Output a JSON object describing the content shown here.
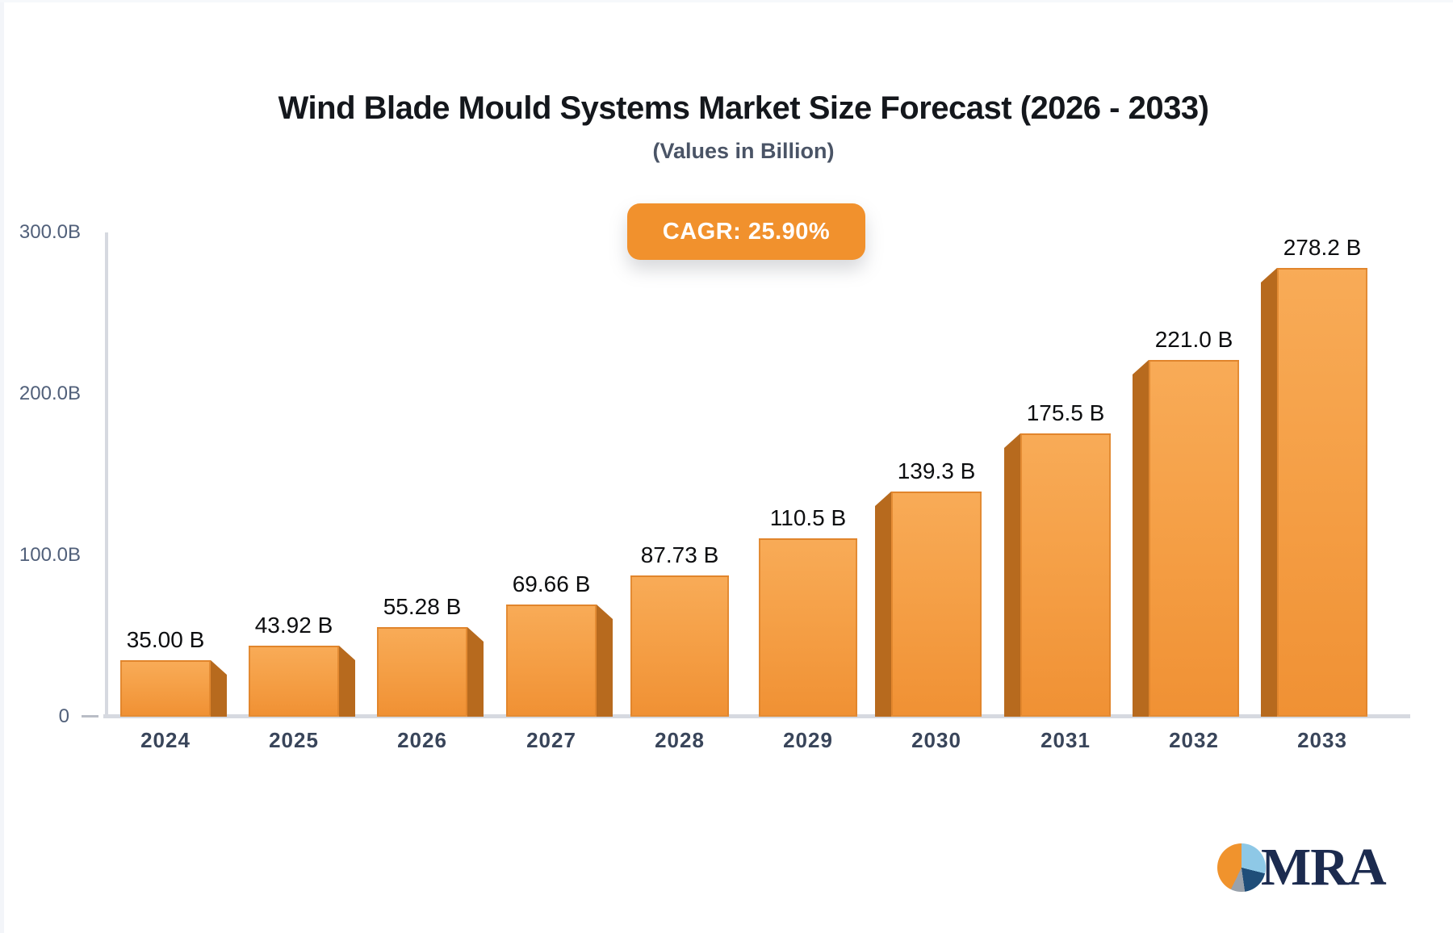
{
  "header": {
    "title": "Wind Blade Mould Systems Market Size Forecast (2026 - 2033)",
    "subtitle": "(Values in Billion)",
    "cagr_label": "CAGR: 25.90%"
  },
  "logo": {
    "text": "MRA"
  },
  "colors": {
    "accent_orange": "#f1912d",
    "bar_front_top": "#f8ab57",
    "bar_front_bottom": "#f09134",
    "bar_side": "#b76a1e",
    "axis_gray": "#d6d9e0",
    "navy": "#1c2b4f"
  },
  "chart_data": {
    "type": "bar",
    "title": "Wind Blade Mould Systems Market Size Forecast (2026 - 2033)",
    "subtitle": "(Values in Billion)",
    "cagr_label": "CAGR: 25.90%",
    "categories": [
      "2024",
      "2025",
      "2026",
      "2027",
      "2028",
      "2029",
      "2030",
      "2031",
      "2032",
      "2033"
    ],
    "values": [
      35.0,
      43.92,
      55.28,
      69.66,
      87.73,
      110.5,
      139.3,
      175.5,
      221.0,
      278.2
    ],
    "value_labels": [
      "35.00 B",
      "43.92 B",
      "55.28 B",
      "69.66 B",
      "87.73 B",
      "110.5 B",
      "139.3 B",
      "175.5 B",
      "221.0 B",
      "278.2 B"
    ],
    "y_ticks": [
      {
        "label": "300.0B",
        "value": 300
      },
      {
        "label": "200.0B",
        "value": 200
      },
      {
        "label": "100.0B",
        "value": 100
      },
      {
        "label": "0",
        "value": 0
      }
    ],
    "ylim": [
      0,
      300
    ],
    "xlabel": "",
    "ylabel": "",
    "grid": false,
    "legend": false,
    "unit": "Billion"
  }
}
